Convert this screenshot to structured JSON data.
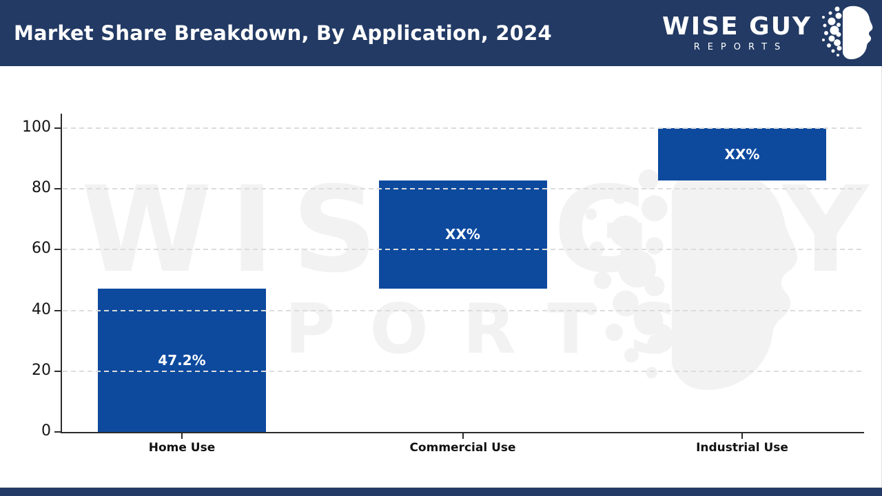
{
  "header": {
    "title": "Market Share Breakdown, By Application, 2024",
    "background": "#223a64",
    "logo": {
      "line1": "WISE GUY",
      "line2": "REPORTS"
    }
  },
  "watermark": {
    "line1": "WISE GUY",
    "line2": "REPORTS"
  },
  "chart_data": {
    "type": "bar",
    "subtype": "floating-waterfall",
    "title": "Market Share Breakdown, By Application, 2024",
    "categories": [
      "Home Use",
      "Commercial Use",
      "Industrial Use"
    ],
    "segments": [
      {
        "category": "Home Use",
        "start": 0,
        "end": 47.2,
        "label": "47.2%"
      },
      {
        "category": "Commercial Use",
        "start": 47.2,
        "end": 82.8,
        "label": "XX%"
      },
      {
        "category": "Industrial Use",
        "start": 82.8,
        "end": 100,
        "label": "XX%"
      }
    ],
    "yticks": [
      0,
      20,
      40,
      60,
      80,
      100
    ],
    "ylim": [
      0,
      104.8
    ],
    "xlabel": "",
    "ylabel": "",
    "grid": "horizontal-dashed",
    "legend": "none",
    "bar_color": "#0d4a9e",
    "bar_label_color": "#ffffff",
    "axis_color": "#2b2b2b",
    "gridline_color": "#dcdcdc"
  },
  "footer": {
    "background": "#223a64"
  }
}
